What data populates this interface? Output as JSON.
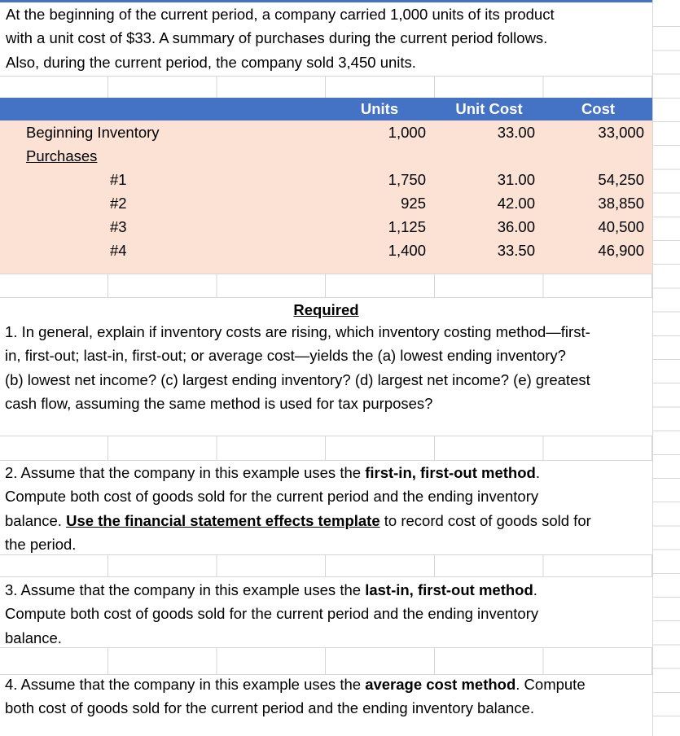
{
  "intro": {
    "lines": [
      "At the beginning of the current period, a company carried 1,000 units of its product",
      "with a unit cost of $33. A summary of purchases during the current period follows.",
      "Also, during the current period, the company sold 3,450 units."
    ]
  },
  "table": {
    "headers": {
      "units": "Units",
      "unit_cost": "Unit Cost",
      "cost": "Cost"
    },
    "rows": [
      {
        "label": "Beginning Inventory",
        "units": "1,000",
        "unit_cost": "33.00",
        "cost": "33,000"
      },
      {
        "label": "Purchases",
        "units": "",
        "unit_cost": "",
        "cost": ""
      },
      {
        "label": "#1",
        "units": "1,750",
        "unit_cost": "31.00",
        "cost": "54,250"
      },
      {
        "label": "#2",
        "units": "925",
        "unit_cost": "42.00",
        "cost": "38,850"
      },
      {
        "label": "#3",
        "units": "1,125",
        "unit_cost": "36.00",
        "cost": "40,500"
      },
      {
        "label": "#4",
        "units": "1,400",
        "unit_cost": "33.50",
        "cost": "46,900"
      }
    ]
  },
  "required": {
    "heading": "Required"
  },
  "q1": {
    "lines": [
      "1. In general, explain if inventory costs are rising, which inventory costing method—first-",
      "in, first-out; last-in, first-out; or average cost—yields the (a) lowest ending inventory?",
      "(b) lowest net income? (c) largest ending inventory? (d) largest net income? (e) greatest",
      "cash flow, assuming the same method is used for tax purposes?"
    ]
  },
  "q2": {
    "line1_pre": "2. Assume that the company in this example uses the ",
    "line1_bold": "first-in, first-out method",
    "line1_post": ".",
    "line2": "Compute both cost of goods sold for the current period and the ending inventory",
    "line3_pre": "balance. ",
    "line3_bold": "Use the financial statement effects template",
    "line3_post": " to record cost of goods sold for",
    "line4": "the period."
  },
  "q3": {
    "line1_pre": "3. Assume that the company in this example uses the ",
    "line1_bold": "last-in, first-out method",
    "line1_post": ".",
    "line2": "Compute both cost of goods sold for the current period and the ending inventory",
    "line3": "balance."
  },
  "q4": {
    "line1_pre": "4. Assume that the company in this example uses the ",
    "line1_bold": "average cost method",
    "line1_post": ". Compute",
    "line2": "both cost of goods sold for the current period and the ending inventory balance."
  },
  "colors": {
    "header_blue": "#4472C4",
    "row_peach": "#FBE2D5",
    "gridline": "#D6D6D6"
  }
}
